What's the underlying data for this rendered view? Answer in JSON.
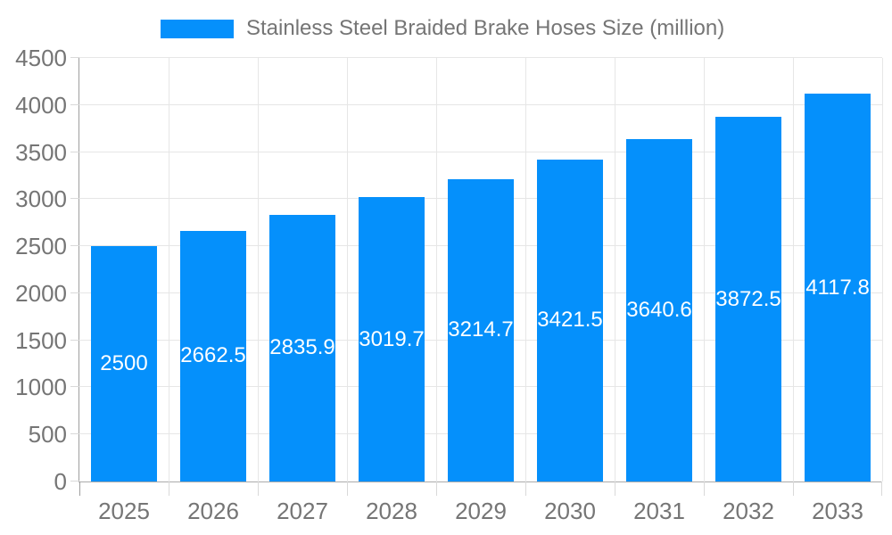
{
  "chart_data": {
    "type": "bar",
    "title": "Stainless Steel Braided Brake Hoses Size (million)",
    "categories": [
      "2025",
      "2026",
      "2027",
      "2028",
      "2029",
      "2030",
      "2031",
      "2032",
      "2033"
    ],
    "values": [
      2500,
      2662.5,
      2835.9,
      3019.7,
      3214.7,
      3421.5,
      3640.6,
      3872.5,
      4117.8
    ],
    "value_labels": [
      "2500",
      "2662.5",
      "2835.9",
      "3019.7",
      "3214.7",
      "3421.5",
      "3640.6",
      "3872.5",
      "4117.8"
    ],
    "yticks": [
      0,
      500,
      1000,
      1500,
      2000,
      2500,
      3000,
      3500,
      4000,
      4500
    ],
    "ylim": [
      0,
      4500
    ],
    "xlabel": "",
    "ylabel": "",
    "grid": true,
    "legend_position": "top",
    "colors": {
      "bar": "#0590fb",
      "bar_label": "#ffffff",
      "axis_text": "#757575",
      "legend_text": "#757575",
      "gridline": "#e6e6e6",
      "axis_line": "#a3a3a3"
    }
  }
}
